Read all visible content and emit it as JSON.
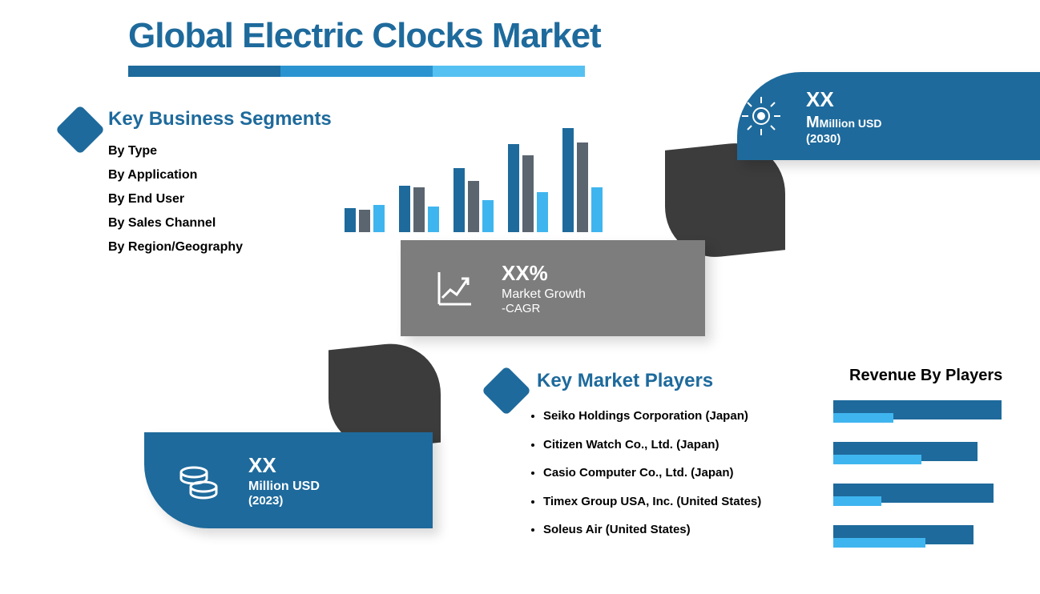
{
  "title": {
    "text": "Global Electric Clocks Market",
    "color": "#1e6a9c"
  },
  "underline": {
    "segments": [
      {
        "color": "#1e6a9c",
        "width": 190
      },
      {
        "color": "#2b94d0",
        "width": 190
      },
      {
        "color": "#55c1f2",
        "width": 190
      }
    ]
  },
  "segments_section": {
    "heading": "Key Business Segments",
    "heading_color": "#1e6a9c",
    "diamond_color": "#1e6a9c",
    "items": [
      "By Type",
      "By Application",
      "By End User",
      "By Sales Channel",
      "By Region/Geography"
    ]
  },
  "mini_chart": {
    "bar_colors": {
      "a": "#1e6a9c",
      "b": "#5a6570",
      "c": "#3fb5ef"
    },
    "groups": [
      {
        "a": 30,
        "b": 28,
        "c": 34
      },
      {
        "a": 58,
        "b": 56,
        "c": 32
      },
      {
        "a": 80,
        "b": 64,
        "c": 40
      },
      {
        "a": 110,
        "b": 96,
        "c": 50
      },
      {
        "a": 130,
        "b": 112,
        "c": 56
      }
    ]
  },
  "curve_stats": {
    "bottom": {
      "value": "XX",
      "line1": "Million USD",
      "line2": "(2023)",
      "bg": "#1e6a9c",
      "curve": "#3c3c3c",
      "icon": "coins"
    },
    "middle": {
      "value": "XX%",
      "line1": "Market Growth",
      "line2": "-CAGR",
      "bg": "#7d7d7d",
      "curve": "#3c3c3c",
      "icon": "growth"
    },
    "top": {
      "value": "XX",
      "line1": "Million USD",
      "line2": "(2030)",
      "bg": "#1e6a9c",
      "icon": "bulb"
    }
  },
  "players_section": {
    "heading": "Key Market Players",
    "heading_color": "#1e6a9c",
    "diamond_color": "#1e6a9c",
    "players": [
      "Seiko Holdings Corporation (Japan)",
      "Citizen Watch Co., Ltd. (Japan)",
      "Casio Computer Co., Ltd. (Japan)",
      "Timex Group USA, Inc. (United States)",
      "Soleus Air (United States)"
    ]
  },
  "revenue_section": {
    "heading": "Revenue By Players",
    "back_color": "#1e6a9c",
    "front_color": "#3fb5ef",
    "rows": [
      {
        "back": 210,
        "front": 75
      },
      {
        "back": 180,
        "front": 110
      },
      {
        "back": 200,
        "front": 60
      },
      {
        "back": 175,
        "front": 115
      }
    ]
  }
}
